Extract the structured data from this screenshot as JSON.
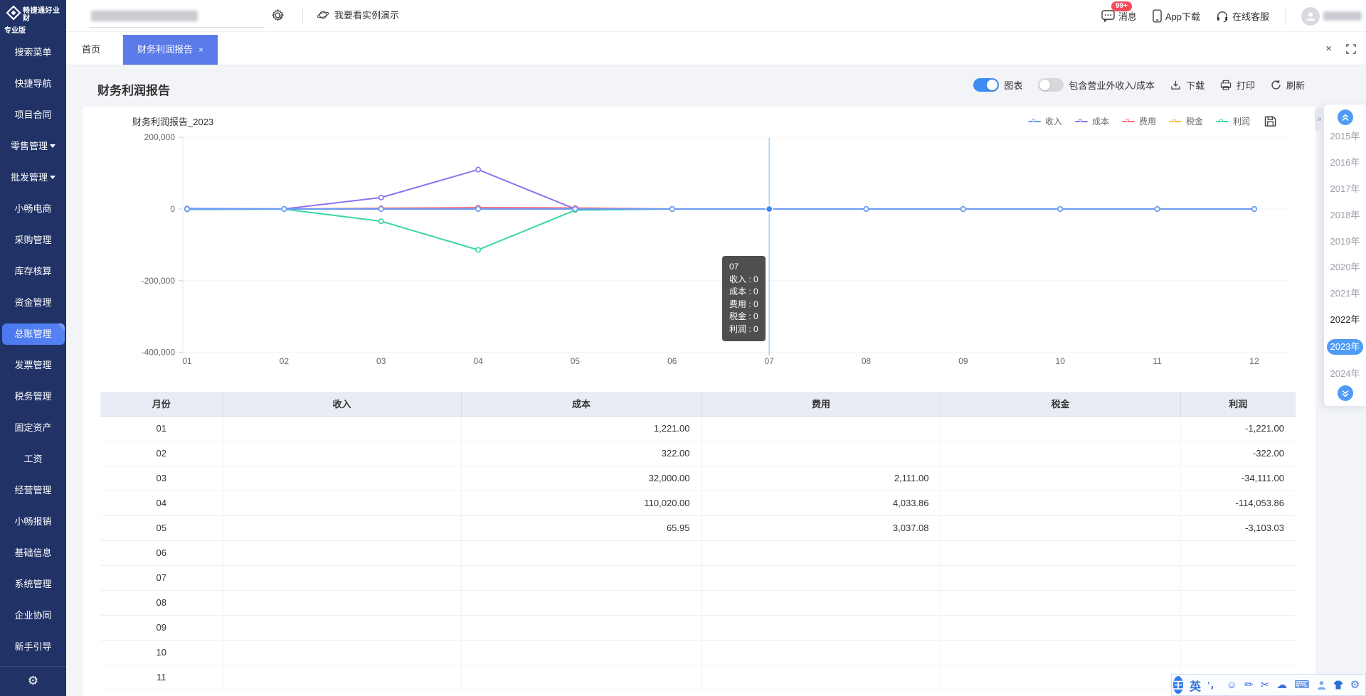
{
  "topbar": {
    "logo_title": "畅捷通好业财",
    "logo_subtitle": "专业版",
    "demo_label": "我要看实例演示",
    "messages_label": "消息",
    "messages_badge": "99+",
    "app_download_label": "App下载",
    "service_label": "在线客服"
  },
  "tabs": {
    "home_label": "首页",
    "active_label": "财务利润报告",
    "close_glyph": "×"
  },
  "sidebar": {
    "items": [
      {
        "label": "搜索菜单"
      },
      {
        "label": "快捷导航"
      },
      {
        "label": "项目合同"
      },
      {
        "label": "零售管理",
        "caret": true
      },
      {
        "label": "批发管理",
        "caret": true
      },
      {
        "label": "小畅电商"
      },
      {
        "label": "采购管理"
      },
      {
        "label": "库存核算"
      },
      {
        "label": "资金管理"
      },
      {
        "label": "总账管理",
        "selected": true
      },
      {
        "label": "发票管理"
      },
      {
        "label": "税务管理"
      },
      {
        "label": "固定资产"
      },
      {
        "label": "工资"
      },
      {
        "label": "经营管理"
      },
      {
        "label": "小畅报销"
      },
      {
        "label": "基础信息"
      },
      {
        "label": "系统管理"
      },
      {
        "label": "企业协同"
      },
      {
        "label": "新手引导"
      }
    ]
  },
  "header": {
    "title": "财务利润报告",
    "chart_toggle_label": "图表",
    "chart_toggle_state": "on",
    "include_toggle_label": "包含营业外收入/成本",
    "include_toggle_state": "off",
    "download_label": "下载",
    "print_label": "打印",
    "refresh_label": "刷新"
  },
  "chart_data": {
    "type": "line",
    "title": "财务利润报告_2023",
    "categories": [
      "01",
      "02",
      "03",
      "04",
      "05",
      "06",
      "07",
      "08",
      "09",
      "10",
      "11",
      "12"
    ],
    "series": [
      {
        "name": "收入",
        "color": "#6b9bf8",
        "values": [
          0,
          0,
          0,
          0,
          0,
          0,
          0,
          0,
          0,
          0,
          0,
          0
        ]
      },
      {
        "name": "成本",
        "color": "#8f72f0",
        "values": [
          1221,
          322,
          32000,
          110020,
          65.95,
          0,
          0,
          0,
          0,
          0,
          0,
          0
        ]
      },
      {
        "name": "费用",
        "color": "#f4737d",
        "values": [
          0,
          0,
          2111,
          4033.86,
          3037.08,
          0,
          0,
          0,
          0,
          0,
          0,
          0
        ]
      },
      {
        "name": "税金",
        "color": "#f3c13f",
        "values": [
          0,
          0,
          0,
          0,
          0,
          0,
          0,
          0,
          0,
          0,
          0,
          0
        ]
      },
      {
        "name": "利润",
        "color": "#3ad6a7",
        "values": [
          -1221,
          -322,
          -34111,
          -114053.86,
          -3103.03,
          0,
          0,
          0,
          0,
          0,
          0,
          0
        ]
      }
    ],
    "ylim": [
      -400000,
      200000
    ],
    "ytick_values": [
      200000,
      0,
      -200000,
      -400000
    ],
    "ytick_labels": [
      "200,000",
      "0",
      "-200,000",
      "-400,000"
    ],
    "legend_position": "top-right",
    "grid": "faint-horizontal",
    "crosshair": {
      "category": "07"
    },
    "tooltip": {
      "title": "07",
      "items": [
        {
          "label": "收入",
          "value": "0"
        },
        {
          "label": "成本",
          "value": "0"
        },
        {
          "label": "费用",
          "value": "0"
        },
        {
          "label": "税金",
          "value": "0"
        },
        {
          "label": "利润",
          "value": "0"
        }
      ]
    }
  },
  "table": {
    "headers": [
      "月份",
      "收入",
      "成本",
      "费用",
      "税金",
      "利润"
    ],
    "rows": [
      [
        "01",
        "",
        "1,221.00",
        "",
        "",
        "-1,221.00"
      ],
      [
        "02",
        "",
        "322.00",
        "",
        "",
        "-322.00"
      ],
      [
        "03",
        "",
        "32,000.00",
        "2,111.00",
        "",
        "-34,111.00"
      ],
      [
        "04",
        "",
        "110,020.00",
        "4,033.86",
        "",
        "-114,053.86"
      ],
      [
        "05",
        "",
        "65.95",
        "3,037.08",
        "",
        "-3,103.03"
      ],
      [
        "06",
        "",
        "",
        "",
        "",
        ""
      ],
      [
        "07",
        "",
        "",
        "",
        "",
        ""
      ],
      [
        "08",
        "",
        "",
        "",
        "",
        ""
      ],
      [
        "09",
        "",
        "",
        "",
        "",
        ""
      ],
      [
        "10",
        "",
        "",
        "",
        "",
        ""
      ],
      [
        "11",
        "",
        "",
        "",
        "",
        ""
      ]
    ]
  },
  "year_panel": {
    "years": [
      {
        "label": "2015年",
        "state": "muted"
      },
      {
        "label": "2016年",
        "state": "muted"
      },
      {
        "label": "2017年",
        "state": "muted"
      },
      {
        "label": "2018年",
        "state": "muted"
      },
      {
        "label": "2019年",
        "state": "muted"
      },
      {
        "label": "2020年",
        "state": "muted"
      },
      {
        "label": "2021年",
        "state": "muted"
      },
      {
        "label": "2022年",
        "state": "normal"
      },
      {
        "label": "2023年",
        "state": "selected"
      },
      {
        "label": "2024年",
        "state": "muted"
      }
    ],
    "collapse_glyph": "»"
  },
  "taskbar": {
    "ime_main": "王",
    "ime_lang": "英",
    "icons": [
      {
        "name": "punctuation-icon",
        "glyph": "’，"
      },
      {
        "name": "emoji-icon",
        "glyph": "☺"
      },
      {
        "name": "handwriting-icon",
        "glyph": "✏"
      },
      {
        "name": "screenshot-icon",
        "glyph": "✂"
      },
      {
        "name": "cloud-icon",
        "glyph": "☁"
      },
      {
        "name": "keyboard-icon",
        "glyph": "⌨"
      },
      {
        "name": "person-icon",
        "glyph": "svg:person"
      },
      {
        "name": "skin-icon",
        "glyph": "svg:shirt"
      },
      {
        "name": "settings-icon",
        "glyph": "⚙"
      }
    ]
  }
}
